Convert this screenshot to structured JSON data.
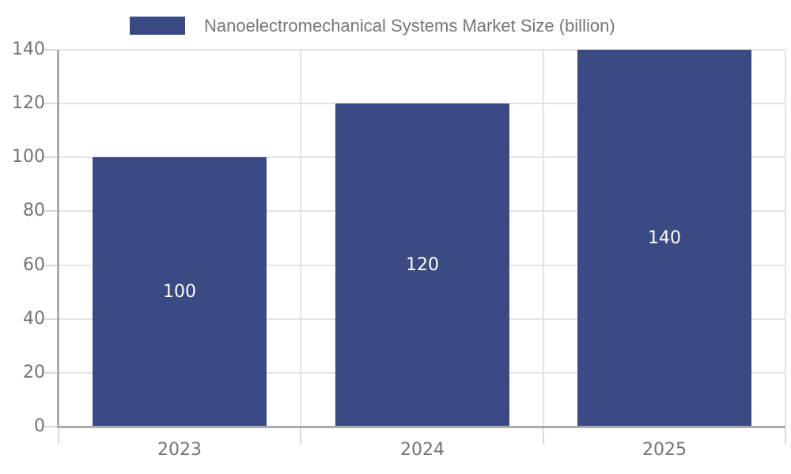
{
  "chart_data": {
    "type": "bar",
    "title": "Nanoelectromechanical Systems Market Size (billion)",
    "categories": [
      "2023",
      "2024",
      "2025"
    ],
    "values": [
      100,
      120,
      140
    ],
    "value_labels": [
      "100",
      "120",
      "140"
    ],
    "xlabel": "",
    "ylabel": "",
    "ylim": [
      0,
      140
    ],
    "yticks": [
      0,
      20,
      40,
      60,
      80,
      100,
      120,
      140
    ],
    "grid": true,
    "legend_position": "top-center",
    "colors": {
      "bar": "#3A4A82",
      "bar_value_label": "#FFFFFF",
      "title_text": "#767676",
      "tick_text": "#737373",
      "gridline": "#E4E4E4",
      "tick_mark": "#D9D9DC",
      "axis_line": "#ABABAB",
      "background": "#FFFFFF"
    }
  }
}
